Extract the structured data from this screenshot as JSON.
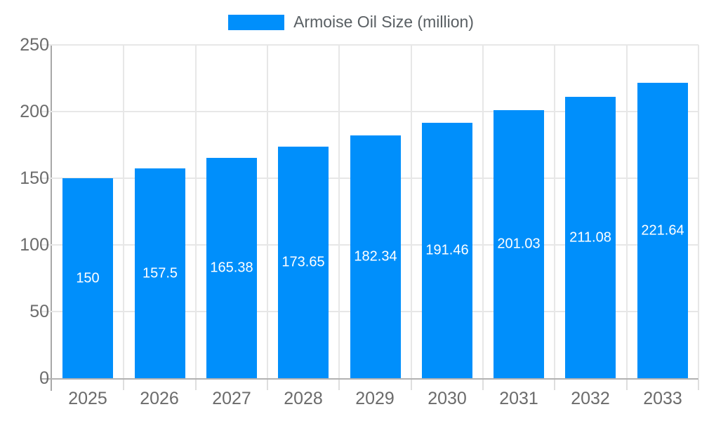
{
  "chart_data": {
    "type": "bar",
    "title": "Armoise Oil Size (million)",
    "categories": [
      "2025",
      "2026",
      "2027",
      "2028",
      "2029",
      "2030",
      "2031",
      "2032",
      "2033"
    ],
    "series": [
      {
        "name": "Armoise Oil Size (million)",
        "values": [
          150,
          157.5,
          165.38,
          173.65,
          182.34,
          191.46,
          201.03,
          211.08,
          221.64
        ]
      }
    ],
    "value_labels": [
      "150",
      "157.5",
      "165.38",
      "173.65",
      "182.34",
      "191.46",
      "201.03",
      "211.08",
      "221.64"
    ],
    "xlabel": "",
    "ylabel": "",
    "ylim": [
      0,
      250
    ],
    "yticks": [
      0,
      50,
      100,
      150,
      200,
      250
    ],
    "grid": true,
    "legend_position": "top",
    "colors": {
      "bar": "#008FFB",
      "data_label": "#FFFFFF",
      "axis_text": "#6B6B6B",
      "legend_text": "#595F63",
      "grid_line": "#E7E7E7",
      "axis_line": "#A8A8A8",
      "x_axis_line": "#B2B2B2",
      "tick_mark": "#DEDEDE",
      "background": "#FFFFFF"
    }
  },
  "legend": {
    "label": "Armoise Oil Size (million)"
  }
}
